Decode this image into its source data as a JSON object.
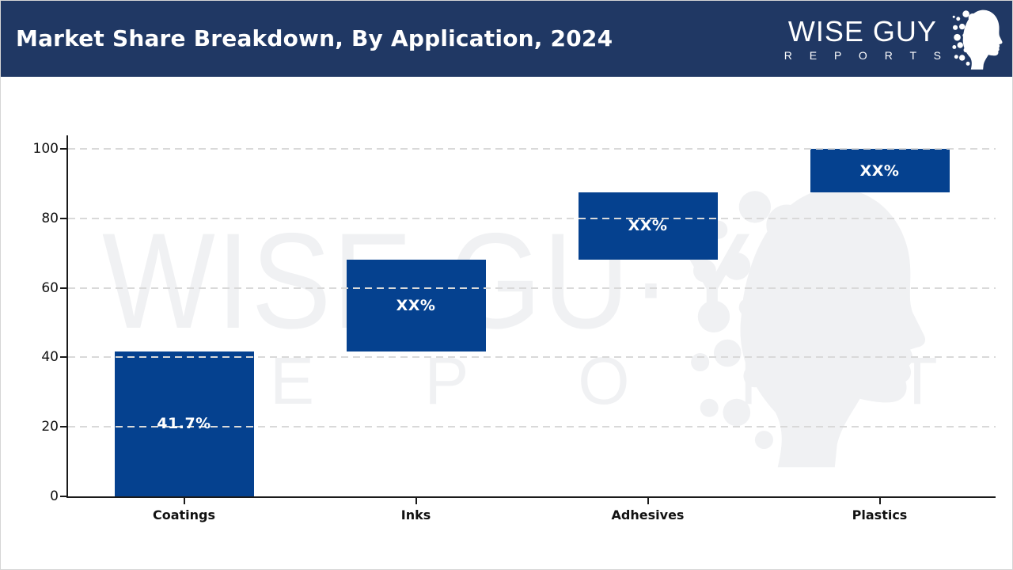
{
  "header": {
    "title": "Market Share Breakdown, By Application, 2024",
    "brand": {
      "line1": "WISE GUY",
      "line2": "R E P O R T S",
      "head_icon": "dotted-head-profile"
    }
  },
  "watermark": {
    "line1": "WISE GU·Y",
    "line2": "R E P O R T S",
    "head_icon": "dotted-head-profile"
  },
  "colors": {
    "header_bg": "#203864",
    "header_text": "#ffffff",
    "bar": "#05418f",
    "bar_label": "#ffffff",
    "grid": "#d9d9d9",
    "axis": "#1a1a1a",
    "tick_text": "#111111",
    "watermark": "#f0f1f3"
  },
  "chart_data": {
    "type": "bar",
    "subtype": "waterfall",
    "title": "Market Share Breakdown, By Application, 2024",
    "xlabel": "",
    "ylabel": "",
    "categories": [
      "Coatings",
      "Inks",
      "Adhesives",
      "Plastics"
    ],
    "segments": [
      {
        "category": "Coatings",
        "start": 0,
        "end": 41.7,
        "label": "41.7%"
      },
      {
        "category": "Inks",
        "start": 41.7,
        "end": 68.2,
        "label": "XX%"
      },
      {
        "category": "Adhesives",
        "start": 68.2,
        "end": 87.4,
        "label": "XX%"
      },
      {
        "category": "Plastics",
        "start": 87.4,
        "end": 100,
        "label": "XX%"
      }
    ],
    "ylim": [
      0,
      100
    ],
    "yticks": [
      0,
      20,
      40,
      60,
      80,
      100
    ],
    "grid": "horizontal-dashed",
    "legend": "none",
    "bar_color": "#05418f",
    "value_label_color": "#ffffff"
  }
}
